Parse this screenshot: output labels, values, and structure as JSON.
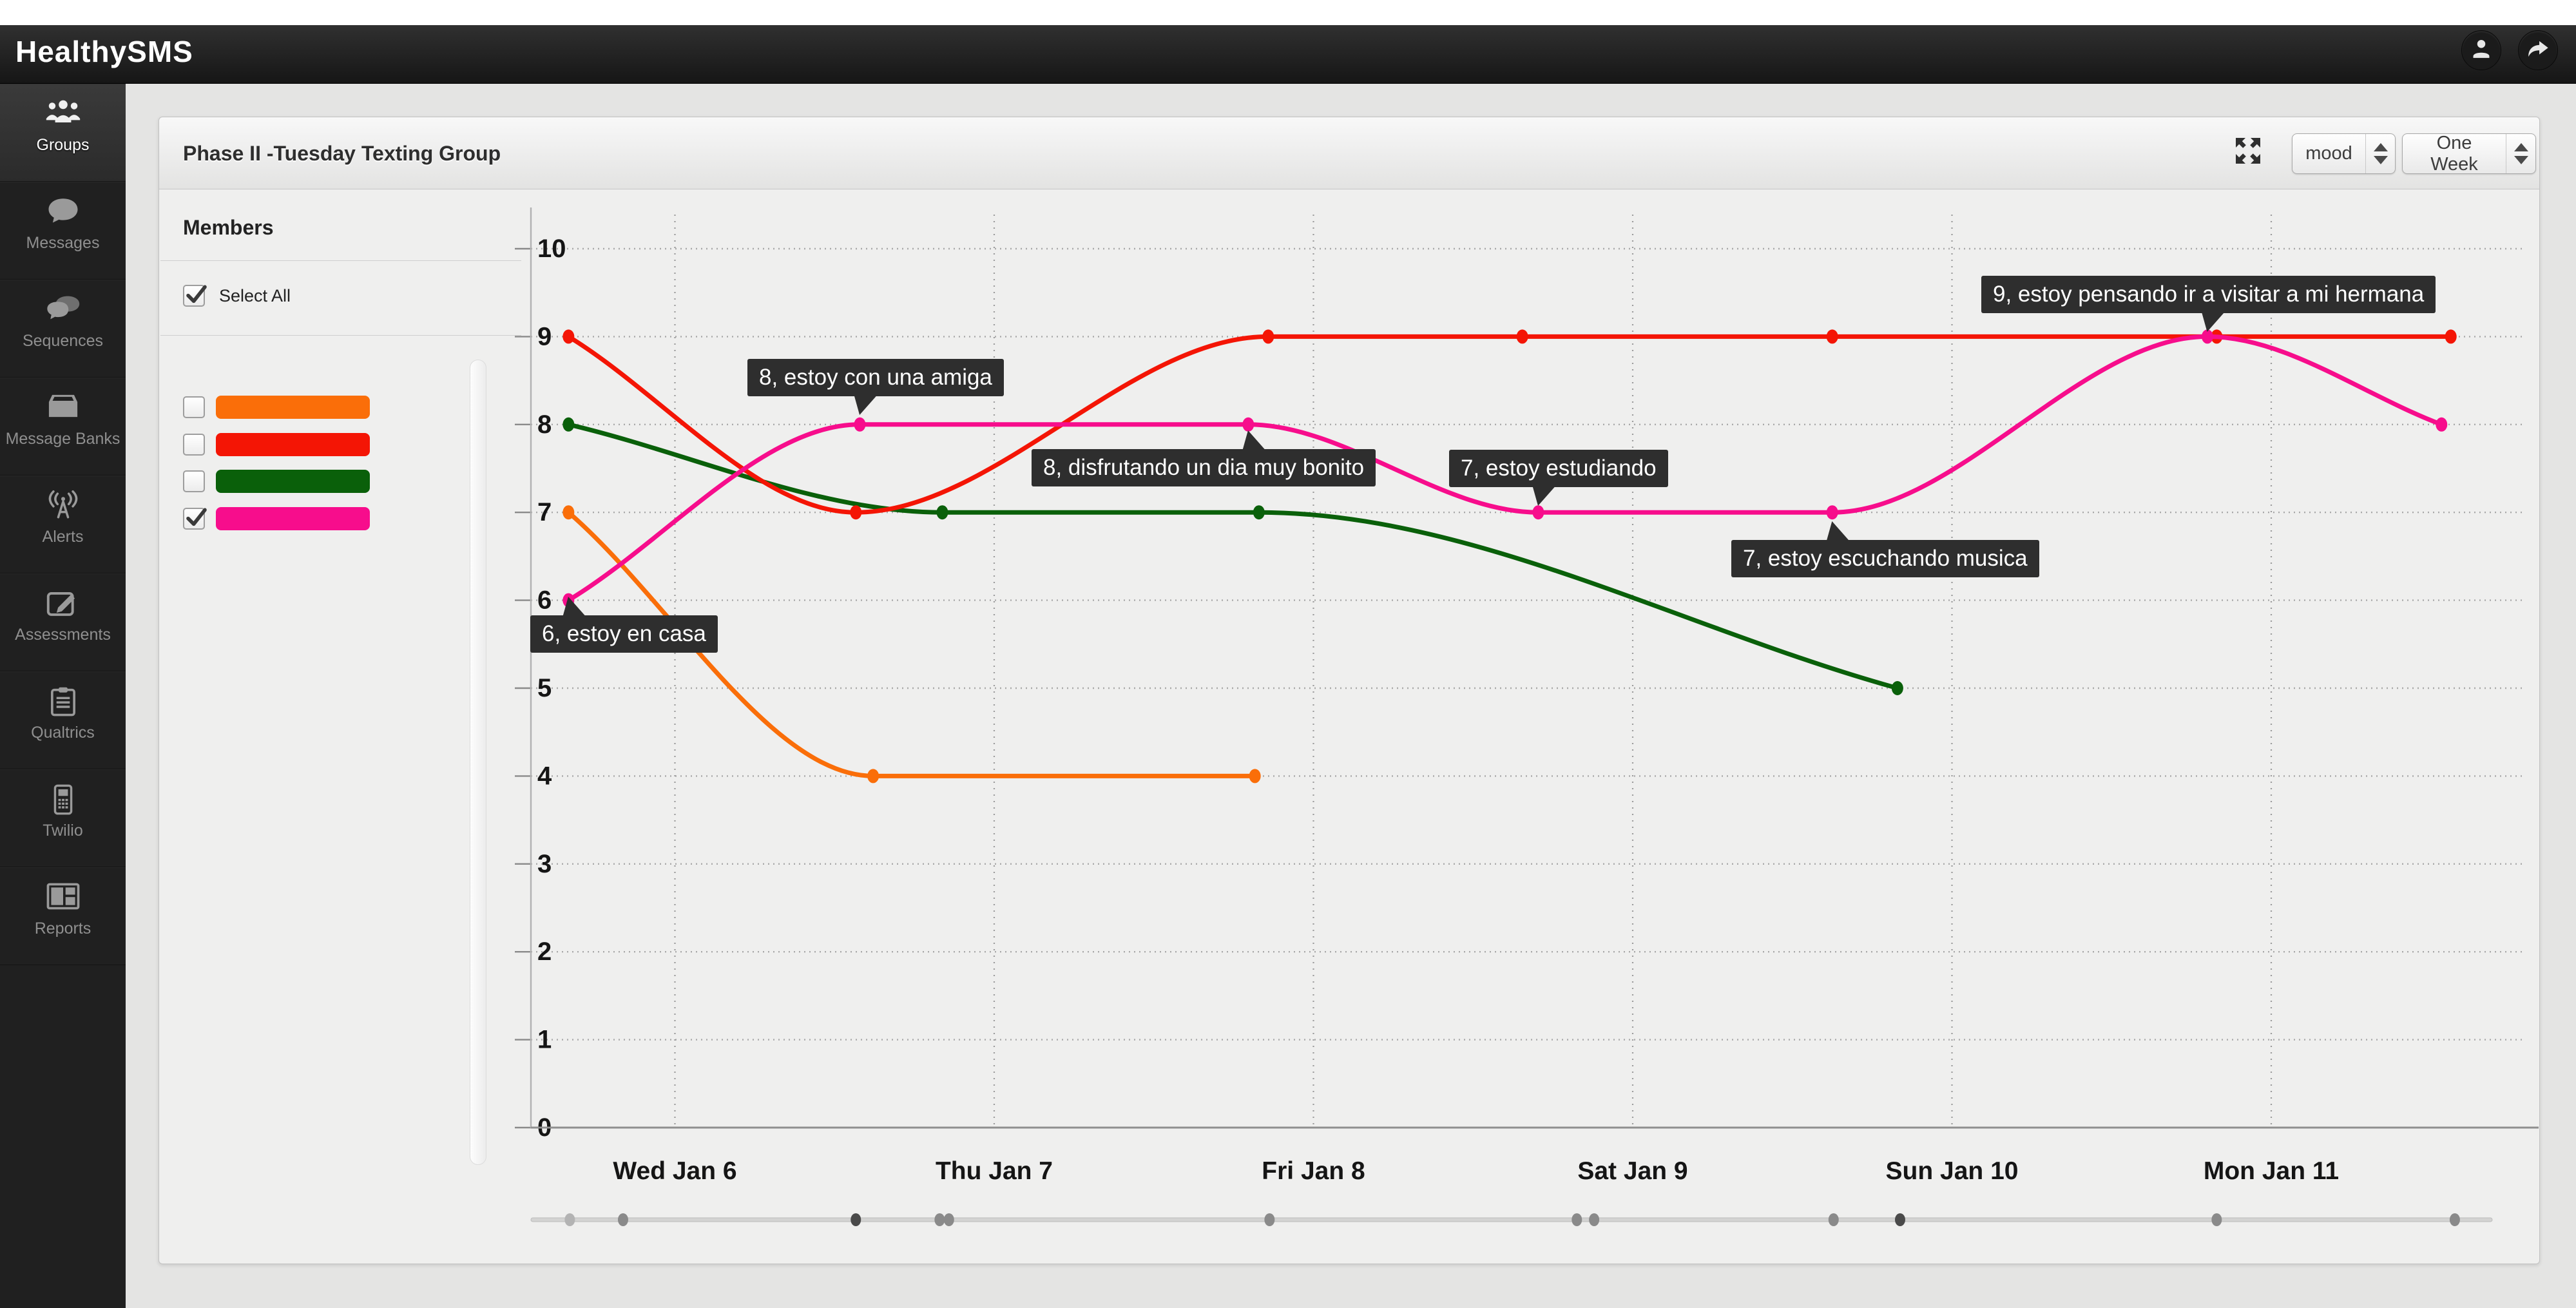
{
  "header": {
    "app_title": "HealthySMS",
    "buttons": [
      {
        "name": "user-button",
        "icon": "person-icon"
      },
      {
        "name": "share-button",
        "icon": "share-arrow-icon"
      }
    ]
  },
  "sidebar": {
    "items": [
      {
        "label": "Groups",
        "icon": "groups-icon",
        "active": true
      },
      {
        "label": "Messages",
        "icon": "speech-bubble-icon",
        "active": false
      },
      {
        "label": "Sequences",
        "icon": "double-bubble-icon",
        "active": false
      },
      {
        "label": "Message Banks",
        "icon": "box-icon",
        "active": false
      },
      {
        "label": "Alerts",
        "icon": "radio-tower-icon",
        "active": false
      },
      {
        "label": "Assessments",
        "icon": "edit-square-icon",
        "active": false
      },
      {
        "label": "Qualtrics",
        "icon": "clipboard-icon",
        "active": false
      },
      {
        "label": "Twilio",
        "icon": "phone-icon",
        "active": false
      },
      {
        "label": "Reports",
        "icon": "layout-grid-icon",
        "active": false
      }
    ]
  },
  "panel": {
    "title": "Phase II -Tuesday Texting Group",
    "controls": {
      "expand_icon": "expand-arrows-icon",
      "metric_select": "mood",
      "range_select": "One Week"
    },
    "members": {
      "heading": "Members",
      "select_all_label": "Select All",
      "select_all_checked": true,
      "rows": [
        {
          "color": "#fa6e09",
          "checked": false
        },
        {
          "color": "#f41505",
          "checked": false
        },
        {
          "color": "#0a600a",
          "checked": false
        },
        {
          "color": "#f70d8c",
          "checked": true
        }
      ]
    }
  },
  "chart_data": {
    "type": "line",
    "title": "",
    "xlabel": "",
    "ylabel": "mood",
    "x_axis": {
      "type": "time",
      "unit": "hours since Wed Jan 6 00:00",
      "tick_hours": [
        0,
        24,
        48,
        72,
        96,
        120
      ],
      "tick_labels": [
        "Wed Jan 6",
        "Thu Jan 7",
        "Fri Jan 8",
        "Sat Jan 9",
        "Sun Jan 10",
        "Mon Jan 11"
      ]
    },
    "y_axis": {
      "min": 0,
      "max": 10,
      "ticks": [
        0,
        1,
        2,
        3,
        4,
        5,
        6,
        7,
        8,
        9,
        10
      ]
    },
    "grid": true,
    "series": [
      {
        "name": "member-orange",
        "color": "#fa6e09",
        "points": [
          {
            "t": -8,
            "v": 7
          },
          {
            "t": 14.9,
            "v": 4
          },
          {
            "t": 43.6,
            "v": 4
          }
        ]
      },
      {
        "name": "member-green",
        "color": "#0a600a",
        "points": [
          {
            "t": -8,
            "v": 8
          },
          {
            "t": 20.1,
            "v": 7
          },
          {
            "t": 43.9,
            "v": 7
          },
          {
            "t": 91.9,
            "v": 5
          }
        ]
      },
      {
        "name": "member-red",
        "color": "#f41505",
        "points": [
          {
            "t": -8,
            "v": 9
          },
          {
            "t": 13.6,
            "v": 7
          },
          {
            "t": 44.6,
            "v": 9
          },
          {
            "t": 63.7,
            "v": 9
          },
          {
            "t": 87.0,
            "v": 9
          },
          {
            "t": 115.9,
            "v": 9
          },
          {
            "t": 133.5,
            "v": 9
          }
        ]
      },
      {
        "name": "member-pink",
        "color": "#f70d8c",
        "points": [
          {
            "t": -8,
            "v": 6
          },
          {
            "t": 13.9,
            "v": 8
          },
          {
            "t": 43.1,
            "v": 8
          },
          {
            "t": 64.9,
            "v": 7
          },
          {
            "t": 87.0,
            "v": 7
          },
          {
            "t": 115.2,
            "v": 9
          },
          {
            "t": 132.8,
            "v": 8
          }
        ]
      }
    ],
    "annotations": [
      {
        "text": "6, estoy en casa",
        "t": -8,
        "v": 6,
        "side": "below",
        "box_left": 823,
        "edge_y": 955
      },
      {
        "text": "8, estoy con una amiga",
        "t": 13.9,
        "v": 8,
        "side": "above",
        "box_left": 1160,
        "edge_y": 615
      },
      {
        "text": "8, disfrutando un dia muy bonito",
        "t": 43.1,
        "v": 8,
        "side": "below",
        "box_left": 1601,
        "edge_y": 697
      },
      {
        "text": "7, estoy estudiando",
        "t": 64.9,
        "v": 7,
        "side": "above",
        "box_left": 2249,
        "edge_y": 756
      },
      {
        "text": "7, estoy escuchando musica",
        "t": 87.0,
        "v": 7,
        "side": "below",
        "box_left": 2687,
        "edge_y": 838
      },
      {
        "text": "9, estoy pensando ir a visitar a mi hermana",
        "t": 115.2,
        "v": 9,
        "side": "above",
        "box_left": 3075,
        "edge_y": 486
      }
    ],
    "slider_events": [
      {
        "t": -7.9,
        "shade": "light"
      },
      {
        "t": -3.9,
        "shade": "mid"
      },
      {
        "t": 13.6,
        "shade": "dark"
      },
      {
        "t": 19.9,
        "shade": "mid"
      },
      {
        "t": 20.6,
        "shade": "mid"
      },
      {
        "t": 44.7,
        "shade": "mid"
      },
      {
        "t": 67.8,
        "shade": "mid"
      },
      {
        "t": 69.1,
        "shade": "mid"
      },
      {
        "t": 87.1,
        "shade": "mid"
      },
      {
        "t": 92.1,
        "shade": "dark"
      },
      {
        "t": 115.9,
        "shade": "mid"
      },
      {
        "t": 133.8,
        "shade": "mid"
      }
    ]
  }
}
